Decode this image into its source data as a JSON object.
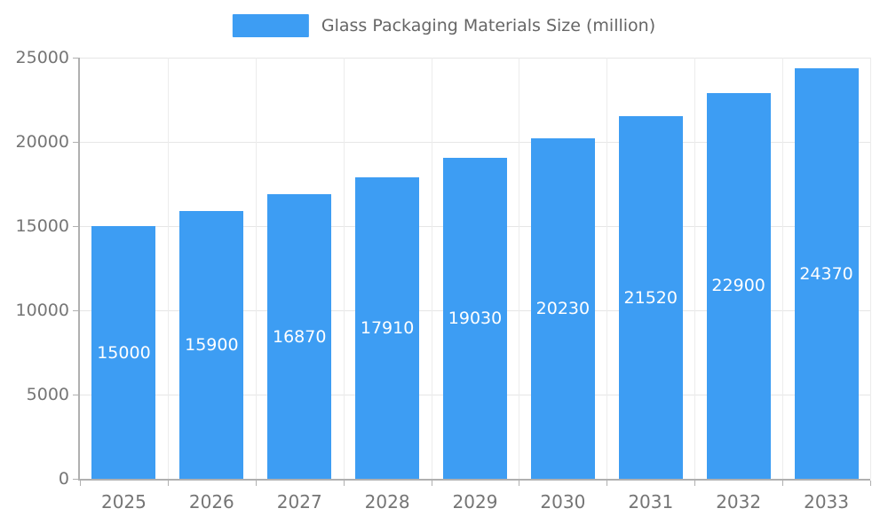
{
  "chart_data": {
    "type": "bar",
    "title": "Glass Packaging Materials Size (million)",
    "legend_position": "top",
    "categories": [
      "2025",
      "2026",
      "2027",
      "2028",
      "2029",
      "2030",
      "2031",
      "2032",
      "2033"
    ],
    "series": [
      {
        "name": "Glass Packaging Materials Size (million)",
        "values": [
          15000,
          15900,
          16870,
          17910,
          19030,
          20230,
          21520,
          22900,
          24370
        ]
      }
    ],
    "xlabel": "",
    "ylabel": "",
    "ylim": [
      0,
      25000
    ],
    "yticks": [
      0,
      5000,
      10000,
      15000,
      20000,
      25000
    ],
    "grid": true,
    "bar_color": "#3D9DF3",
    "bar_label_color": "#ffffff",
    "axis_text_color": "#757575",
    "legend_text_color": "#666666",
    "gridline_color": "#e6e6e6",
    "axis_line_color": "#b0b0b0"
  }
}
